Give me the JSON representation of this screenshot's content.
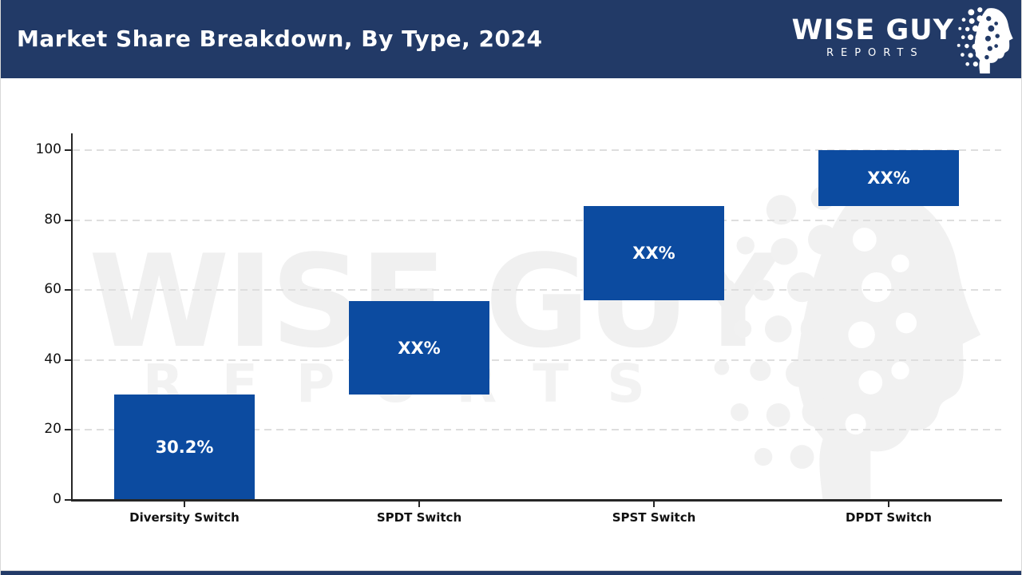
{
  "header": {
    "title": "Market Share Breakdown, By Type, 2024",
    "logo": {
      "line1": "WISE GUY",
      "line2": "REPORTS"
    }
  },
  "watermark": {
    "line1": "WISE GUY",
    "line2": "REPORTS"
  },
  "colors": {
    "header_bg": "#223a67",
    "footer_bg": "#223a67",
    "bar": "#0c4ba0",
    "bar_label_text": "#ffffff",
    "grid": "#dedede",
    "axis": "#262626",
    "tick_text": "#111111",
    "watermark": "#f0f0f0"
  },
  "chart_data": {
    "type": "bar",
    "subtype": "waterfall",
    "title": "Market Share Breakdown, By Type, 2024",
    "categories": [
      "Diversity Switch",
      "SPDT Switch",
      "SPST Switch",
      "DPDT Switch"
    ],
    "segments": [
      {
        "category": "Diversity Switch",
        "start": 0,
        "end": 30.2,
        "label": "30.2%"
      },
      {
        "category": "SPDT Switch",
        "start": 30.2,
        "end": 56.9,
        "label": "XX%"
      },
      {
        "category": "SPST Switch",
        "start": 57.1,
        "end": 84.0,
        "label": "XX%"
      },
      {
        "category": "DPDT Switch",
        "start": 84.0,
        "end": 100.0,
        "label": "XX%"
      }
    ],
    "yticks": [
      0,
      20,
      40,
      60,
      80,
      100
    ],
    "ylim": [
      0,
      104
    ],
    "xlabel": "",
    "ylabel": "",
    "grid": "dashed-horizontal",
    "legend": "none",
    "unit": "%"
  }
}
